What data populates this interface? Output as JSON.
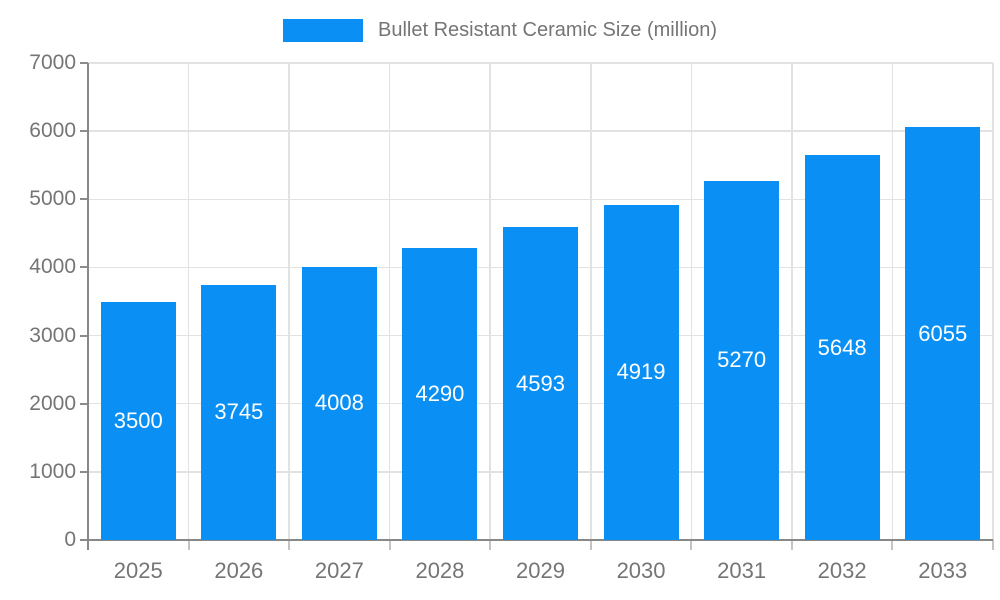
{
  "colors": {
    "bar": "#0a90f4",
    "axis": "#888888",
    "grid": "#e2e2e2",
    "tick_label": "#757575",
    "bar_label": "#ffffff",
    "background": "#ffffff"
  },
  "chart_data": {
    "type": "bar",
    "legend": "Bullet Resistant Ceramic Size (million)",
    "categories": [
      "2025",
      "2026",
      "2027",
      "2028",
      "2029",
      "2030",
      "2031",
      "2032",
      "2033"
    ],
    "values": [
      3500,
      3745,
      4008,
      4290,
      4593,
      4919,
      5270,
      5648,
      6055
    ],
    "ylim": [
      0,
      7000
    ],
    "yticks": [
      0,
      1000,
      2000,
      3000,
      4000,
      5000,
      6000,
      7000
    ],
    "grid": true,
    "legend_position": "top-center",
    "value_labels": "inside-center-white"
  }
}
